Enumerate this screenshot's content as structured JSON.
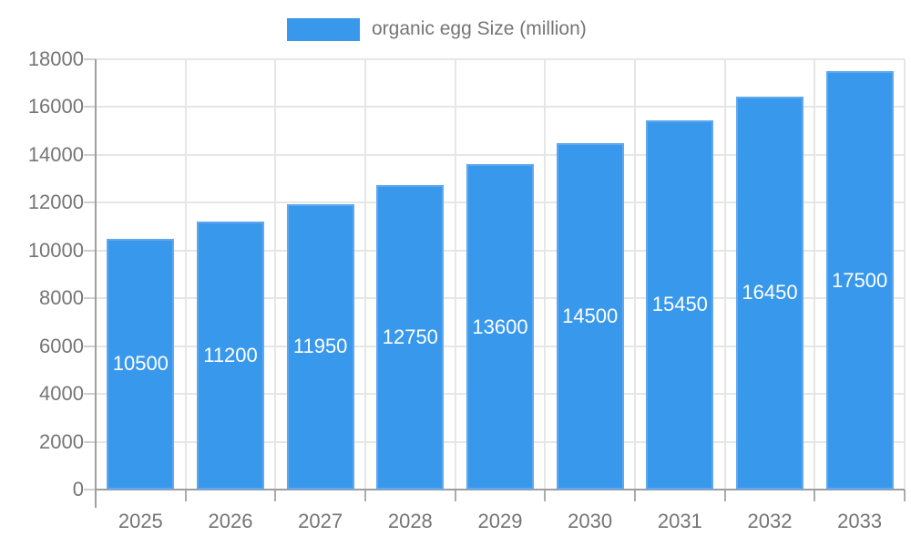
{
  "legend": {
    "label": "organic egg Size (million)"
  },
  "colors": {
    "bar": "#3898EC",
    "bar_border": "#61A8EF",
    "bar_label": "#FFFFFF",
    "grid": "#E6E6E6",
    "axis": "#9E9E9E",
    "y_tick": "#CFCFCF",
    "x_tick": "#ABABAB",
    "text": "#757575",
    "background": "#FFFFFF"
  },
  "chart_data": {
    "type": "bar",
    "title": "",
    "categories": [
      "2025",
      "2026",
      "2027",
      "2028",
      "2029",
      "2030",
      "2031",
      "2032",
      "2033"
    ],
    "series": [
      {
        "name": "organic egg Size (million)",
        "values": [
          10500,
          11200,
          11950,
          12750,
          13600,
          14500,
          15450,
          16450,
          17500
        ]
      }
    ],
    "xlabel": "",
    "ylabel": "",
    "ylim": [
      0,
      18000
    ],
    "yticks": [
      0,
      2000,
      4000,
      6000,
      8000,
      10000,
      12000,
      14000,
      16000,
      18000
    ],
    "grid": true,
    "legend_position": "top",
    "bar_value_labels": "inside-centered-white"
  }
}
